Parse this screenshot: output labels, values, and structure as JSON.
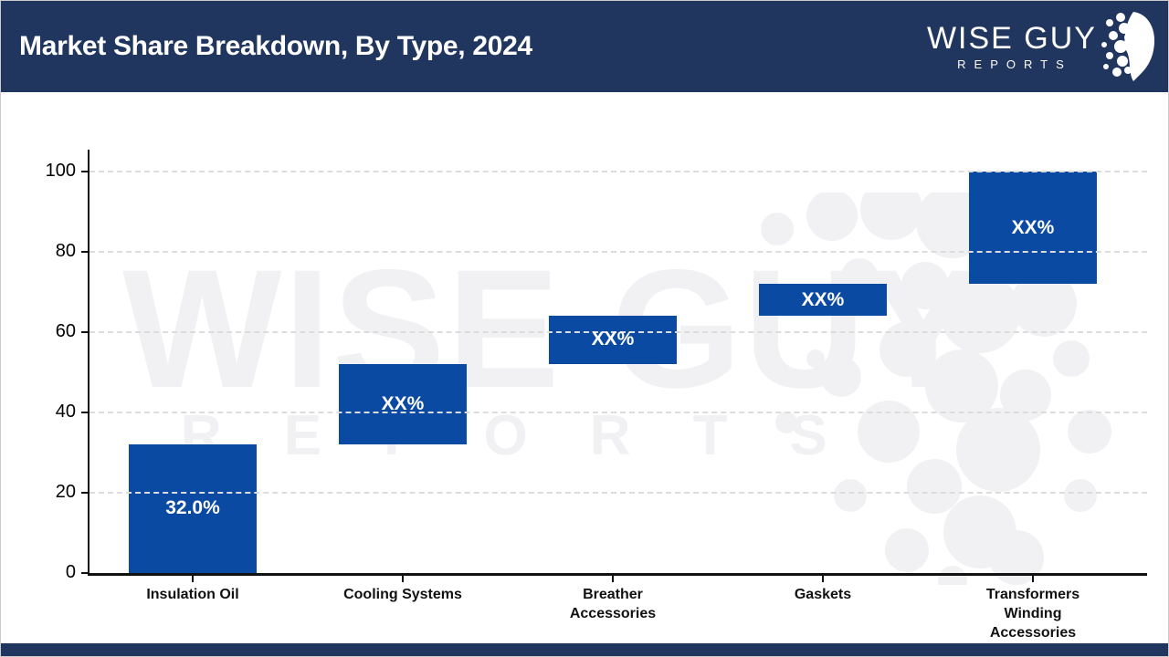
{
  "header": {
    "title": "Market Share Breakdown, By Type, 2024",
    "logo_line1": "WISE GUY",
    "logo_line2": "REPORTS"
  },
  "watermark": {
    "line1": "WISE GUY",
    "line2": "REPORTS"
  },
  "colors": {
    "header_bg": "#21365F",
    "bar": "#0B4AA2",
    "gridline": "#DCDCDC",
    "watermark": "#F1F1F4"
  },
  "chart_data": {
    "type": "bar",
    "subtype": "waterfall",
    "title": "Market Share Breakdown, By Type, 2024",
    "categories": [
      "Insulation Oil",
      "Cooling Systems",
      "Breather\nAccessories",
      "Gaskets",
      "Transformers\nWinding\nAccessories"
    ],
    "bars": [
      {
        "category": "Insulation Oil",
        "label": "32.0%",
        "start": 0,
        "end": 32,
        "value": 32
      },
      {
        "category": "Cooling Systems",
        "label": "XX%",
        "start": 32,
        "end": 52,
        "value": 20
      },
      {
        "category": "Breather Accessories",
        "label": "XX%",
        "start": 52,
        "end": 64,
        "value": 12
      },
      {
        "category": "Gaskets",
        "label": "XX%",
        "start": 64,
        "end": 72,
        "value": 8
      },
      {
        "category": "Transformers Winding Accessories",
        "label": "XX%",
        "start": 72,
        "end": 100,
        "value": 28
      }
    ],
    "xlabel": "",
    "ylabel": "",
    "ylim": [
      0,
      100
    ],
    "yticks": [
      0,
      20,
      40,
      60,
      80,
      100
    ],
    "grid": "horizontal-dashed-over-bars",
    "legend": null
  }
}
